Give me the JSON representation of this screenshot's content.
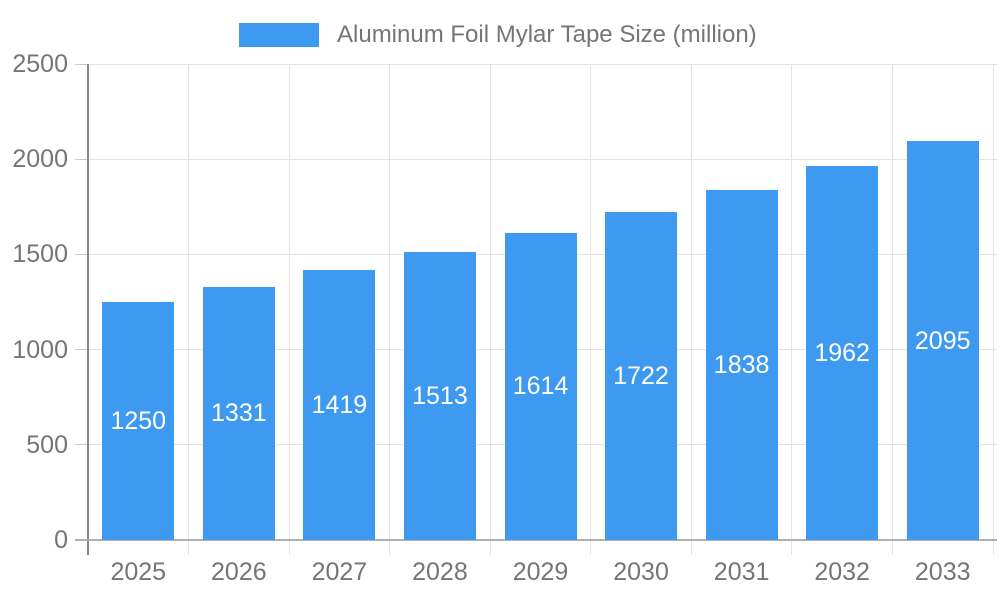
{
  "chart_data": {
    "type": "bar",
    "title": "Aluminum Foil Mylar Tape Size (million)",
    "categories": [
      "2025",
      "2026",
      "2027",
      "2028",
      "2029",
      "2030",
      "2031",
      "2032",
      "2033"
    ],
    "values": [
      1250,
      1331,
      1419,
      1513,
      1614,
      1722,
      1838,
      1962,
      2095
    ],
    "xlabel": "",
    "ylabel": "",
    "ylim": [
      0,
      2500
    ],
    "yticks": [
      0,
      500,
      1000,
      1500,
      2000,
      2500
    ],
    "grid": true,
    "legend_position": "top-center",
    "value_labels_inside_bars": true,
    "colors": {
      "bar": "#3d9af0",
      "value_label": "#ffffff",
      "axis_text": "#757575",
      "grid": "#e3e3e3",
      "tick": "#c9c9c9",
      "y_axis_line": "#878787",
      "x_axis_line": "#b0b0b0",
      "background": "#ffffff"
    }
  }
}
